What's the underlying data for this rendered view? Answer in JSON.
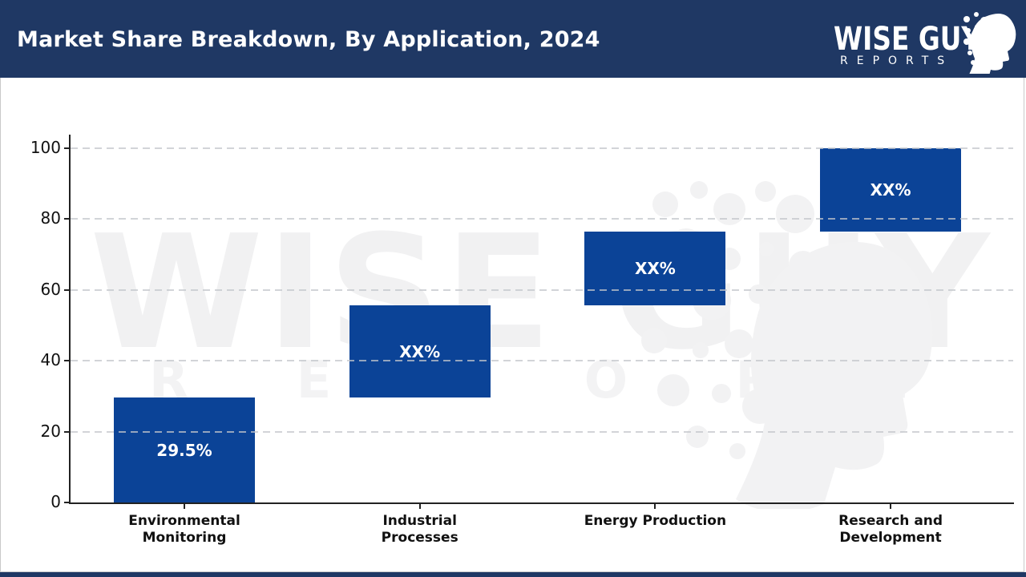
{
  "header": {
    "title": "Market Share Breakdown, By Application, 2024",
    "logo": {
      "line1": "WISE GUY",
      "line2": "REPORTS"
    }
  },
  "watermark": {
    "line1": "WISE GUY",
    "line2": "R E P O R T S"
  },
  "colors": {
    "header_bg": "#1f3864",
    "bar": "#0b4397",
    "gridline": "#d9d9d9",
    "axis": "#222222",
    "watermark": "#f1f1f2",
    "bar_label_text": "#ffffff"
  },
  "chart_data": {
    "type": "bar",
    "subtype": "waterfall",
    "title": "Market Share Breakdown, By Application, 2024",
    "categories": [
      "Environmental Monitoring",
      "Industrial Processes",
      "Energy Production",
      "Research and Development"
    ],
    "category_label_lines": [
      [
        "Environmental",
        "Monitoring"
      ],
      [
        "Industrial",
        "Processes"
      ],
      [
        "Energy Production"
      ],
      [
        "Research and",
        "Development"
      ]
    ],
    "segments": [
      {
        "category": "Environmental Monitoring",
        "start": 0,
        "end": 29.5,
        "label": "29.5%"
      },
      {
        "category": "Industrial Processes",
        "start": 29.5,
        "end": 55.5,
        "label": "XX%"
      },
      {
        "category": "Energy Production",
        "start": 55.5,
        "end": 76.5,
        "label": "XX%"
      },
      {
        "category": "Research and Development",
        "start": 76.5,
        "end": 100,
        "label": "XX%"
      }
    ],
    "yticks": [
      0,
      20,
      40,
      60,
      80,
      100
    ],
    "ylim": [
      0,
      104
    ],
    "xlabel": "",
    "ylabel": "",
    "grid": "horizontal-dashed",
    "legend": "none",
    "bar_color": "#0b4397"
  }
}
